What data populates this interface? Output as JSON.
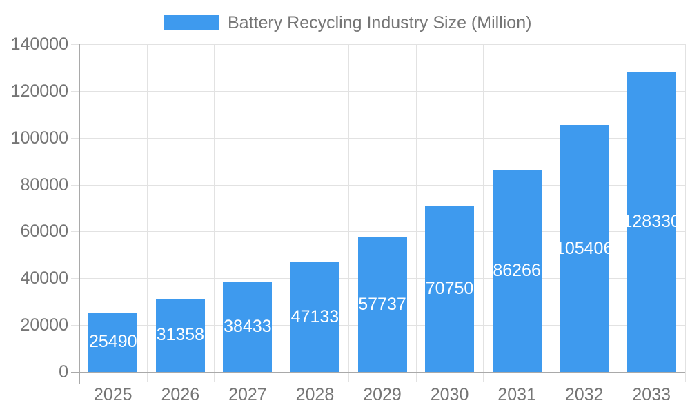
{
  "chart_data": {
    "type": "bar",
    "title": "Battery Recycling Industry Size (Million)",
    "series_name": "Battery Recycling Industry Size (Million)",
    "categories": [
      "2025",
      "2026",
      "2027",
      "2028",
      "2029",
      "2030",
      "2031",
      "2032",
      "2033"
    ],
    "values": [
      25490,
      31358,
      38433,
      47133,
      57737,
      70750,
      86266,
      105406,
      128330
    ],
    "xlabel": "",
    "ylabel": "",
    "ylim": [
      0,
      140000
    ],
    "yticks": [
      0,
      20000,
      40000,
      60000,
      80000,
      100000,
      120000,
      140000
    ],
    "grid": true,
    "legend_position": "top",
    "value_label_position": "inside-center",
    "bar_color": "#3E9AEE",
    "value_label_color": "#FFFFFF",
    "axis_label_color": "#757575",
    "gridline_color": "#E2E2E2",
    "axis_line_color": "#A9A9A9",
    "background_color": "#FFFFFF"
  }
}
